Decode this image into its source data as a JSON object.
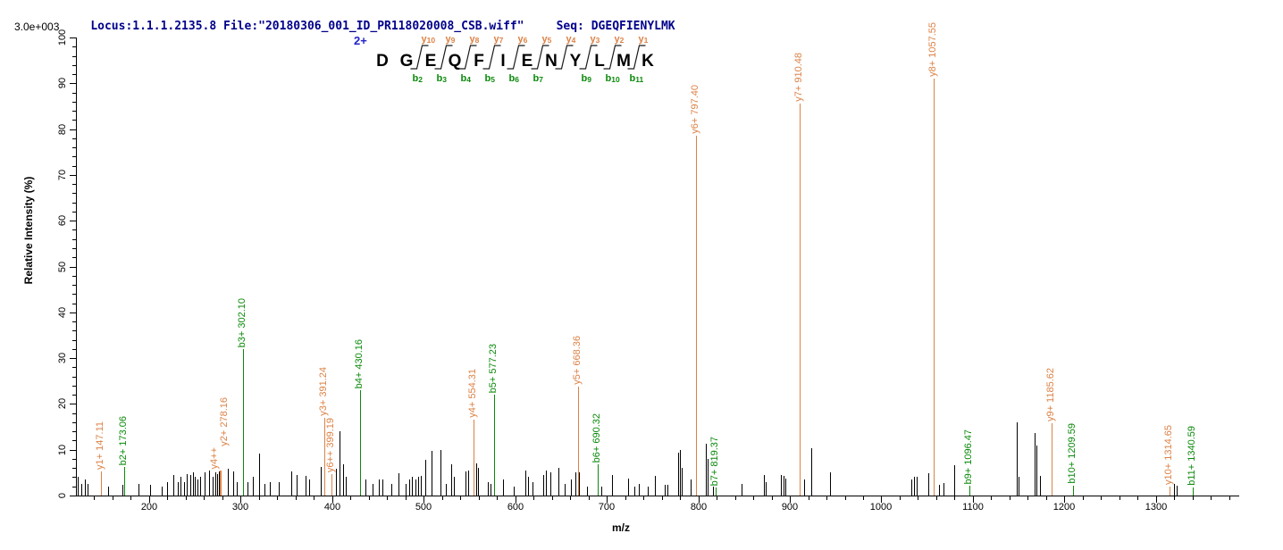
{
  "header": {
    "locus_file": "Locus:1.1.1.2135.8 File:\"20180306_001_ID_PR118020008_CSB.wiff\"",
    "seq": "Seq: DGEQFIENYLMK",
    "intensity_scale": "3.0e+003"
  },
  "peptide": {
    "charge_label": "2+",
    "residues": [
      "D",
      "G",
      "E",
      "Q",
      "F",
      "I",
      "E",
      "N",
      "Y",
      "L",
      "M",
      "K"
    ],
    "cleavages": [
      {
        "after": 2,
        "y": "y10",
        "b": "b2"
      },
      {
        "after": 3,
        "y": "y9",
        "b": "b3"
      },
      {
        "after": 4,
        "y": "y8",
        "b": "b4"
      },
      {
        "after": 5,
        "y": "y7",
        "b": "b5"
      },
      {
        "after": 6,
        "y": "y6",
        "b": "b6"
      },
      {
        "after": 7,
        "y": "y5",
        "b": "b7"
      },
      {
        "after": 8,
        "y": "y4",
        "b": null
      },
      {
        "after": 9,
        "y": "y3",
        "b": "b9"
      },
      {
        "after": 10,
        "y": "y2",
        "b": "b10"
      },
      {
        "after": 11,
        "y": "y1",
        "b": "b11"
      }
    ]
  },
  "axes": {
    "x": {
      "label": "m/z",
      "min": 120,
      "max": 1390,
      "major_ticks": [
        200,
        300,
        400,
        500,
        600,
        700,
        800,
        900,
        1000,
        1100,
        1200,
        1300
      ],
      "minor_step": 20
    },
    "y": {
      "label": "Relative  Intensity (%)",
      "min": 0,
      "max": 100,
      "major_step": 10,
      "minor_step": 2
    }
  },
  "colors": {
    "y_ion": "#DC8246",
    "b_ion": "#0B8A0B",
    "peak": "#000000",
    "header_text": "#00008B",
    "charge_label": "#2222CC",
    "axis": "#000000"
  },
  "chart_data": {
    "type": "bar",
    "title": "",
    "xlabel": "m/z",
    "ylabel": "Relative  Intensity (%)",
    "xlim": [
      120,
      1390
    ],
    "ylim": [
      0,
      100
    ],
    "legend": false,
    "grid": false,
    "series": [
      {
        "name": "annotated_fragment_ions",
        "points": [
          {
            "label": "y1+ 147.11",
            "ion": "y",
            "mz": 147.11,
            "intensity": 5.3
          },
          {
            "label": "b2+ 173.06",
            "ion": "b",
            "mz": 173.06,
            "intensity": 6.2
          },
          {
            "label": "y4++",
            "ion": "y",
            "mz": 277.0,
            "intensity": 5.5,
            "label_dx": -5
          },
          {
            "label": "y2+ 278.16",
            "ion": "y",
            "mz": 278.16,
            "intensity": 5.5,
            "label_dx": 5,
            "label_lift": 25
          },
          {
            "label": "b3+ 302.10",
            "ion": "b",
            "mz": 302.1,
            "intensity": 32
          },
          {
            "label": "y3+ 391.24",
            "ion": "y",
            "mz": 391.24,
            "intensity": 17
          },
          {
            "label": "y6++ 399.19",
            "ion": "y",
            "mz": 399.19,
            "intensity": 4.7
          },
          {
            "label": "b4+ 430.16",
            "ion": "b",
            "mz": 430.16,
            "intensity": 23
          },
          {
            "label": "y4+ 554.31",
            "ion": "y",
            "mz": 554.31,
            "intensity": 16.6
          },
          {
            "label": "b5+ 577.23",
            "ion": "b",
            "mz": 577.23,
            "intensity": 22
          },
          {
            "label": "y5+ 668.36",
            "ion": "y",
            "mz": 668.36,
            "intensity": 23.8
          },
          {
            "label": "b6+ 690.32",
            "ion": "b",
            "mz": 690.32,
            "intensity": 6.8
          },
          {
            "label": "y6+ 797.40",
            "ion": "y",
            "mz": 797.4,
            "intensity": 78.5
          },
          {
            "label": "b7+ 819.37",
            "ion": "b",
            "mz": 819.37,
            "intensity": 1.8
          },
          {
            "label": "y7+ 910.48",
            "ion": "y",
            "mz": 910.48,
            "intensity": 85.5
          },
          {
            "label": "y8+ 1057.55",
            "ion": "y",
            "mz": 1057.55,
            "intensity": 91
          },
          {
            "label": "b9+ 1096.47",
            "ion": "b",
            "mz": 1096.47,
            "intensity": 2.2
          },
          {
            "label": "y9+ 1185.62",
            "ion": "y",
            "mz": 1185.62,
            "intensity": 15.8
          },
          {
            "label": "b10+ 1209.59",
            "ion": "b",
            "mz": 1209.59,
            "intensity": 2.1
          },
          {
            "label": "y10+ 1314.65",
            "ion": "y",
            "mz": 1314.65,
            "intensity": 1.9
          },
          {
            "label": "b11+ 1340.59",
            "ion": "b",
            "mz": 1340.59,
            "intensity": 1.8
          }
        ]
      },
      {
        "name": "unannotated_peaks",
        "points": [
          [
            122,
            4
          ],
          [
            126,
            2.5
          ],
          [
            130,
            3.5
          ],
          [
            133,
            2.5
          ],
          [
            155,
            2
          ],
          [
            171,
            2.3
          ],
          [
            188,
            2.5
          ],
          [
            201,
            2.3
          ],
          [
            214,
            2
          ],
          [
            220,
            3
          ],
          [
            226,
            4.5
          ],
          [
            231,
            3
          ],
          [
            234,
            4
          ],
          [
            238,
            3
          ],
          [
            241,
            4.6
          ],
          [
            245,
            4.5
          ],
          [
            247.5,
            5
          ],
          [
            250,
            4
          ],
          [
            253,
            3.5
          ],
          [
            256,
            4
          ],
          [
            261,
            5
          ],
          [
            265,
            5.5
          ],
          [
            269,
            4
          ],
          [
            272,
            5
          ],
          [
            274.5,
            4.7
          ],
          [
            276,
            5.2
          ],
          [
            286,
            5.8
          ],
          [
            292,
            5.3
          ],
          [
            296,
            3
          ],
          [
            307,
            3
          ],
          [
            313,
            4
          ],
          [
            320,
            9.2
          ],
          [
            326,
            2.5
          ],
          [
            332,
            3
          ],
          [
            342,
            3
          ],
          [
            355,
            5.3
          ],
          [
            361,
            4.4
          ],
          [
            371,
            4.3
          ],
          [
            375,
            3.5
          ],
          [
            387,
            6.2
          ],
          [
            404,
            5.8
          ],
          [
            408,
            14
          ],
          [
            412,
            6.8
          ],
          [
            415,
            4
          ],
          [
            436,
            3.5
          ],
          [
            444,
            2.5
          ],
          [
            451,
            3.5
          ],
          [
            455,
            3.5
          ],
          [
            465,
            2.5
          ],
          [
            472,
            4.9
          ],
          [
            480,
            2.5
          ],
          [
            484,
            3.5
          ],
          [
            487,
            4
          ],
          [
            491,
            3.5
          ],
          [
            494,
            4
          ],
          [
            497,
            4.3
          ],
          [
            502,
            7.8
          ],
          [
            509,
            9.7
          ],
          [
            518,
            10
          ],
          [
            524,
            2.5
          ],
          [
            530,
            6.8
          ],
          [
            533,
            4
          ],
          [
            546,
            5.3
          ],
          [
            549,
            5.5
          ],
          [
            557,
            7
          ],
          [
            559.5,
            6
          ],
          [
            570,
            3
          ],
          [
            573,
            2.5
          ],
          [
            587,
            3.5
          ],
          [
            598,
            2
          ],
          [
            611,
            5.5
          ],
          [
            614,
            4
          ],
          [
            619,
            3
          ],
          [
            631,
            4.5
          ],
          [
            633,
            5.5
          ],
          [
            638,
            5
          ],
          [
            647,
            6
          ],
          [
            654,
            2.5
          ],
          [
            661,
            3.5
          ],
          [
            666,
            5
          ],
          [
            670,
            5
          ],
          [
            678,
            2
          ],
          [
            694,
            2
          ],
          [
            706,
            4.5
          ],
          [
            723,
            3.7
          ],
          [
            730,
            2
          ],
          [
            735,
            2.5
          ],
          [
            745,
            2
          ],
          [
            753,
            4.2
          ],
          [
            763,
            2.3
          ],
          [
            766,
            2.3
          ],
          [
            778,
            9.4
          ],
          [
            780,
            10
          ],
          [
            781.5,
            6
          ],
          [
            792,
            3.5
          ],
          [
            808,
            11.3
          ],
          [
            810.5,
            8
          ],
          [
            816,
            2
          ],
          [
            847,
            2.5
          ],
          [
            872,
            4.5
          ],
          [
            874,
            3
          ],
          [
            890,
            4.5
          ],
          [
            893,
            4.2
          ],
          [
            895,
            3.8
          ],
          [
            916,
            3.5
          ],
          [
            923,
            10.3
          ],
          [
            944,
            5
          ],
          [
            1033,
            3.5
          ],
          [
            1036,
            4
          ],
          [
            1039,
            4
          ],
          [
            1051,
            4.9
          ],
          [
            1063,
            2.3
          ],
          [
            1068,
            2.8
          ],
          [
            1080,
            6.6
          ],
          [
            1148,
            16
          ],
          [
            1150,
            4
          ],
          [
            1167,
            13.6
          ],
          [
            1169,
            11
          ],
          [
            1173,
            4.3
          ],
          [
            1320,
            2.5
          ],
          [
            1323,
            2.2
          ]
        ]
      }
    ]
  }
}
